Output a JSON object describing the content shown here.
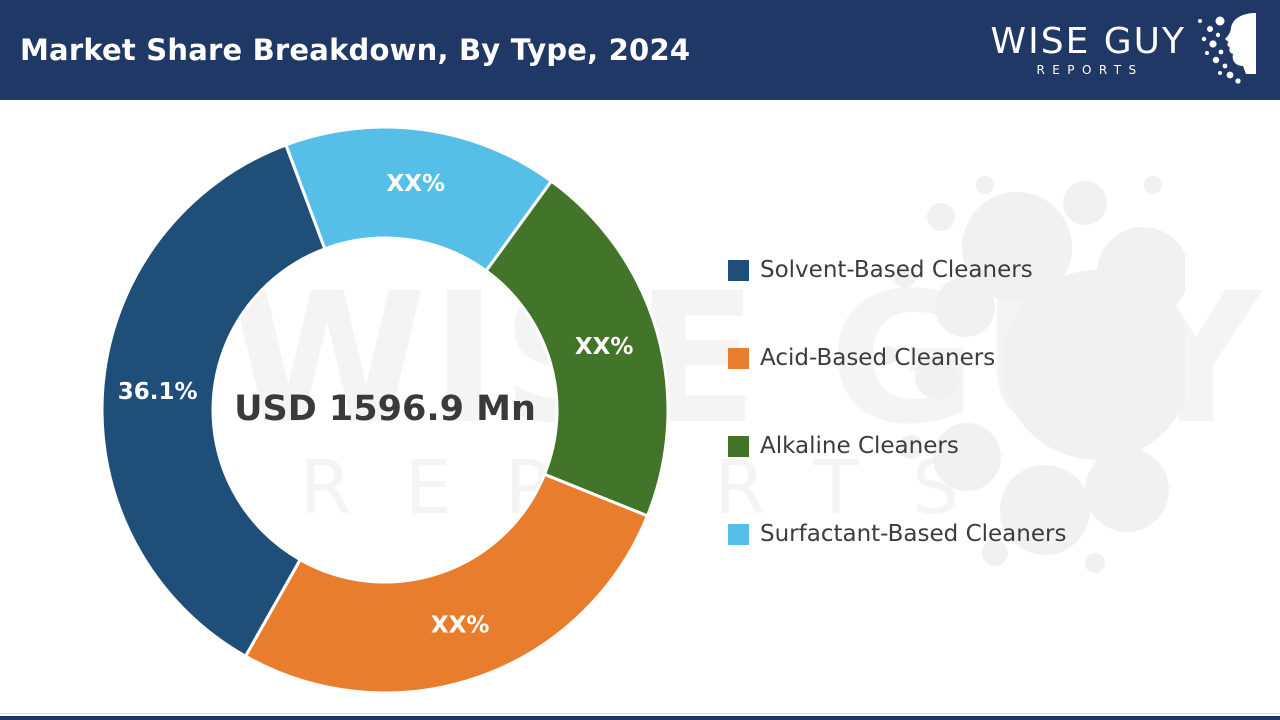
{
  "header": {
    "title": "Market Share Breakdown, By Type, 2024",
    "bg_color": "#203865",
    "logo": {
      "line1": "WISE GUY",
      "line2": "REPORTS"
    }
  },
  "watermark": {
    "line1": "WISE GUY",
    "line2": "REPORTS"
  },
  "chart_data": {
    "type": "pie",
    "subtype": "donut",
    "title": "Market Share Breakdown, By Type, 2024",
    "center_label": "USD 1596.9 Mn",
    "start_angle_deg": 110.5,
    "direction": "clockwise",
    "outer_radius_px": 283,
    "inner_radius_px": 172,
    "slices": [
      {
        "name": "Surfactant-Based Cleaners",
        "display_value": "XX%",
        "value_pct": 15.7,
        "color": "#56bfe7"
      },
      {
        "name": "Alkaline Cleaners",
        "display_value": "XX%",
        "value_pct": 21.1,
        "color": "#427529"
      },
      {
        "name": "Acid-Based Cleaners",
        "display_value": "XX%",
        "value_pct": 27.1,
        "color": "#e87d2e"
      },
      {
        "name": "Solvent-Based Cleaners",
        "display_value": "36.1%",
        "value_pct": 36.1,
        "color": "#1f4e79"
      }
    ],
    "legend_position": "right",
    "legend": [
      {
        "label": "Solvent-Based Cleaners",
        "color": "#1f4e79"
      },
      {
        "label": "Acid-Based Cleaners",
        "color": "#e87d2e"
      },
      {
        "label": "Alkaline Cleaners",
        "color": "#427529"
      },
      {
        "label": "Surfactant-Based Cleaners",
        "color": "#56bfe7"
      }
    ]
  }
}
